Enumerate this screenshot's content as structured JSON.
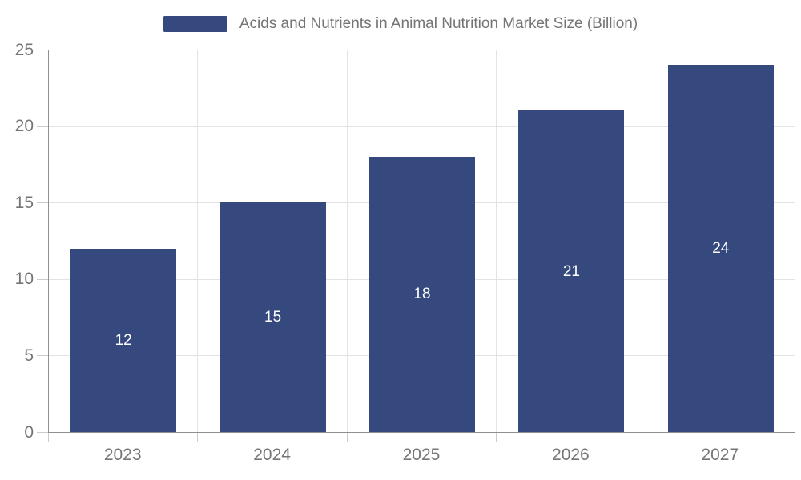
{
  "legend": {
    "label": "Acids and Nutrients in Animal Nutrition Market Size (Billion)"
  },
  "chart_data": {
    "type": "bar",
    "title": "Acids and Nutrients in Animal Nutrition Market Size (Billion)",
    "categories": [
      "2023",
      "2024",
      "2025",
      "2026",
      "2027"
    ],
    "values": [
      12,
      15,
      18,
      21,
      24
    ],
    "bar_labels": [
      "12",
      "15",
      "18",
      "21",
      "24"
    ],
    "yticks": [
      0,
      5,
      10,
      15,
      20,
      25
    ],
    "ylim": [
      0,
      25
    ],
    "xlabel": "",
    "ylabel": "",
    "grid": true,
    "legend_position": "top-center"
  },
  "colors": {
    "bar": "#36497E",
    "grid": "#e3e3e3",
    "axis": "#909090",
    "tick_mark": "#cccccc",
    "tick_text": "#757575",
    "legend_text": "#757575",
    "bar_label_text": "#ffffff",
    "background": "#ffffff"
  }
}
